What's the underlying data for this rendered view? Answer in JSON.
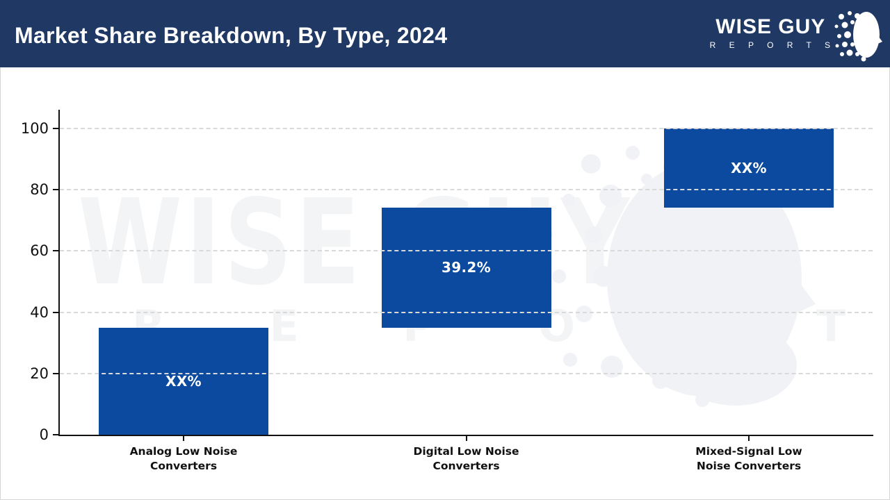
{
  "header": {
    "title": "Market Share Breakdown, By Type, 2024",
    "bg_color": "#203864",
    "logo": {
      "line1": "WISE GUY",
      "line2": "R E P O R T S"
    }
  },
  "watermark": {
    "line1": "WISE GUY",
    "line2": "R E P O R T S"
  },
  "chart_data": {
    "type": "bar",
    "variant": "waterfall (floating stacked range bars)",
    "title": "Market Share Breakdown, By Type, 2024",
    "categories": [
      "Analog Low Noise Converters",
      "Digital Low Noise Converters",
      "Mixed-Signal Low Noise Converters"
    ],
    "categories_lines": [
      [
        "Analog Low Noise",
        "Converters"
      ],
      [
        "Digital Low Noise",
        "Converters"
      ],
      [
        "Mixed-Signal Low",
        "Noise Converters"
      ]
    ],
    "segments": [
      {
        "category": "Analog Low Noise Converters",
        "start": 0,
        "end": 35.0,
        "size": 35.0,
        "value_label": "XX%"
      },
      {
        "category": "Digital Low Noise Converters",
        "start": 35.0,
        "end": 74.2,
        "size": 39.2,
        "value_label": "39.2%"
      },
      {
        "category": "Mixed-Signal Low Noise Converters",
        "start": 74.2,
        "end": 100,
        "size": 25.8,
        "value_label": "XX%"
      }
    ],
    "ylim": [
      0,
      100
    ],
    "yticks": [
      0,
      20,
      40,
      60,
      80,
      100
    ],
    "xlabel": "",
    "ylabel": "",
    "grid": "horizontal dashed gridlines, drawn over bars",
    "legend": "none",
    "bar_color": "#0b4a9e",
    "bar_label_color": "#ffffff",
    "axis_color": "#111111",
    "gridline_color": "#d9d9d9"
  }
}
